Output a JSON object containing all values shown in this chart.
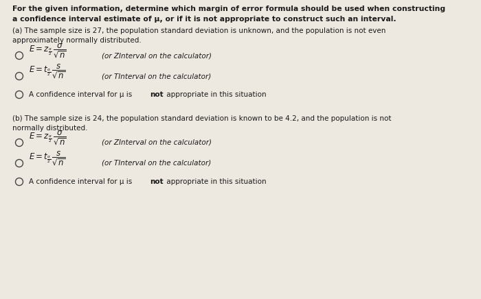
{
  "bg_color": "#ede8e0",
  "text_color": "#1a1a1a",
  "title_line1": "For the given information, determine which margin of error formula should be used when constructing",
  "title_line2": "a confidence interval estimate of μ, or if it is not appropriate to construct such an interval.",
  "part_a_desc_line1": "(a) The sample size is 27, the population standard deviation is unknown, and the population is not even",
  "part_a_desc_line2": "approximately normally distributed.",
  "part_b_desc_line1": "(b) The sample size is 24, the population standard deviation is known to be 4.2, and the population is not",
  "part_b_desc_line2": "normally distributed.",
  "option1_b": "(or ZInterval on the calculator)",
  "option2_b": "(or TInterval on the calculator)",
  "circle_color": "#444444",
  "font_size_title": 8.0,
  "font_size_body": 7.8,
  "font_size_formula": 9.0,
  "font_size_italic": 7.8
}
